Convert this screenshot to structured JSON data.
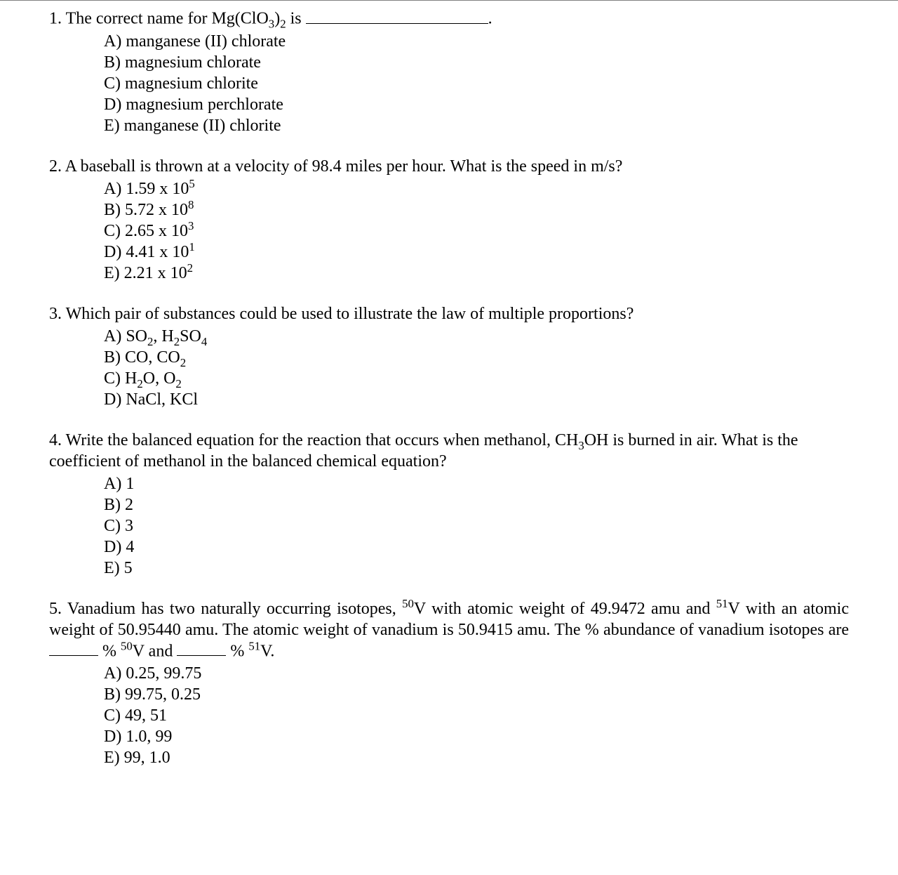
{
  "questions": [
    {
      "number": "1",
      "stem_html": "The correct name for Mg(ClO<sub>3</sub>)<sub>2</sub> is <span class=\"blank\" style=\"width:260px\"></span>.",
      "justify": false,
      "choices": [
        {
          "label": "A)",
          "html": "manganese (II) chlorate"
        },
        {
          "label": "B)",
          "html": "magnesium chlorate"
        },
        {
          "label": "C)",
          "html": "magnesium chlorite"
        },
        {
          "label": "D)",
          "html": "magnesium perchlorate"
        },
        {
          "label": "E)",
          "html": "manganese (II) chlorite"
        }
      ]
    },
    {
      "number": "2",
      "stem_html": "A baseball is thrown at a velocity of 98.4 miles per hour. What is the speed in m/s?",
      "justify": false,
      "choices": [
        {
          "label": "A)",
          "html": "1.59 x 10<sup>5</sup>"
        },
        {
          "label": "B)",
          "html": "5.72 x 10<sup>8</sup>"
        },
        {
          "label": "C)",
          "html": "2.65 x 10<sup>3</sup>"
        },
        {
          "label": "D)",
          "html": "4.41 x 10<sup>1</sup>"
        },
        {
          "label": "E)",
          "html": "2.21 x 10<sup>2</sup>"
        }
      ]
    },
    {
      "number": "3",
      "stem_html": "Which pair of substances could be used to illustrate the law of multiple proportions?",
      "justify": false,
      "choices": [
        {
          "label": "A)",
          "html": "SO<sub>2</sub>, H<sub>2</sub>SO<sub>4</sub>"
        },
        {
          "label": "B)",
          "html": "CO, CO<sub>2</sub>"
        },
        {
          "label": "C)",
          "html": "H<sub>2</sub>O, O<sub>2</sub>"
        },
        {
          "label": "D)",
          "html": "NaCl, KCl"
        }
      ]
    },
    {
      "number": "4",
      "stem_html": "Write the balanced equation for the reaction that occurs when methanol, CH<sub>3</sub>OH is burned in air. What is the coefficient of methanol in the balanced chemical equation?",
      "justify": false,
      "choices": [
        {
          "label": "A)",
          "html": "1"
        },
        {
          "label": "B)",
          "html": "2"
        },
        {
          "label": "C)",
          "html": "3"
        },
        {
          "label": "D)",
          "html": "4"
        },
        {
          "label": "E)",
          "html": "5"
        }
      ]
    },
    {
      "number": "5",
      "stem_html": "Vanadium has two naturally occurring isotopes, <sup>50</sup>V with atomic weight of 49.9472 amu and <sup>51</sup>V with an atomic weight of 50.95440 amu. The atomic weight of vanadium is 50.9415 amu. The % abundance of vanadium isotopes are <span class=\"blank\" style=\"width:70px\"></span> % <sup>50</sup>V and <span class=\"blank\" style=\"width:70px\"></span> % <sup>51</sup>V.",
      "justify": true,
      "choices": [
        {
          "label": "A)",
          "html": "0.25, 99.75"
        },
        {
          "label": "B)",
          "html": "99.75, 0.25"
        },
        {
          "label": "C)",
          "html": "49, 51"
        },
        {
          "label": "D)",
          "html": "1.0, 99"
        },
        {
          "label": "E)",
          "html": "99, 1.0"
        }
      ]
    }
  ]
}
